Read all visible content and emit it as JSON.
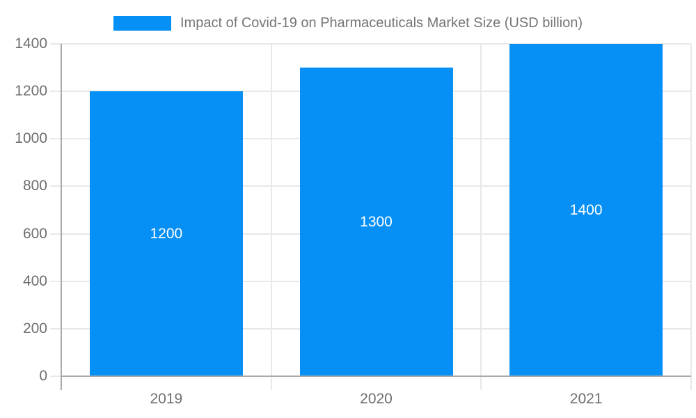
{
  "chart_data": {
    "type": "bar",
    "title": "Impact of Covid-19 on Pharmaceuticals Market Size (USD billion)",
    "legend_position": "top",
    "categories": [
      "2019",
      "2020",
      "2021"
    ],
    "series": [
      {
        "name": "Impact of Covid-19 on Pharmaceuticals Market Size (USD billion)",
        "values": [
          1200,
          1300,
          1400
        ]
      }
    ],
    "bar_labels": [
      "1200",
      "1300",
      "1400"
    ],
    "xlabel": "",
    "ylabel": "",
    "ylim": [
      0,
      1400
    ],
    "yticks": [
      0,
      200,
      400,
      600,
      800,
      1000,
      1200,
      1400
    ],
    "grid": true,
    "colors": {
      "bar": "#0690F5",
      "bar_label": "#FFFFFF",
      "axis_line": "#A9A9A9",
      "grid_line": "#E8E8E8",
      "tick_label": "#6E6E6E",
      "legend_text": "#757575"
    }
  }
}
